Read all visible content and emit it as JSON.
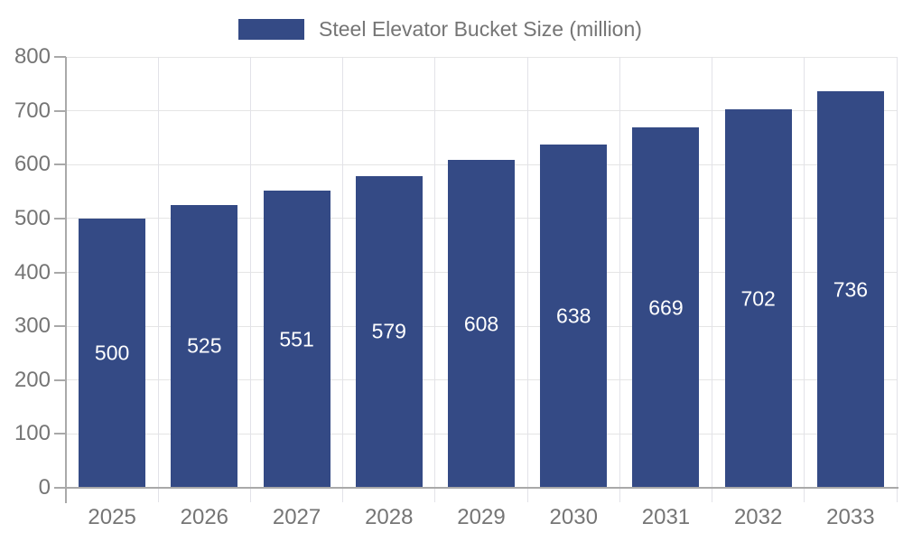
{
  "chart_data": {
    "type": "bar",
    "title": "",
    "legend": "Steel Elevator Bucket Size (million)",
    "series_name": "Steel Elevator Bucket Size (million)",
    "categories": [
      "2025",
      "2026",
      "2027",
      "2028",
      "2029",
      "2030",
      "2031",
      "2032",
      "2033"
    ],
    "values": [
      500,
      525,
      551,
      579,
      608,
      638,
      669,
      702,
      736
    ],
    "xlabel": "",
    "ylabel": "",
    "ylim": [
      0,
      800
    ],
    "yticks": [
      0,
      100,
      200,
      300,
      400,
      500,
      600,
      700,
      800
    ],
    "grid": true,
    "legend_position": "top-center",
    "bar_color": "#344a85",
    "bar_label_color": "#ffffff"
  },
  "colors": {
    "background": "#ffffff",
    "axis_line": "#a9a9a9",
    "h_gridline": "#e5e5e5",
    "v_gridline": "#e2e2e8",
    "tick_label": "#757575",
    "legend_text": "#757575"
  }
}
